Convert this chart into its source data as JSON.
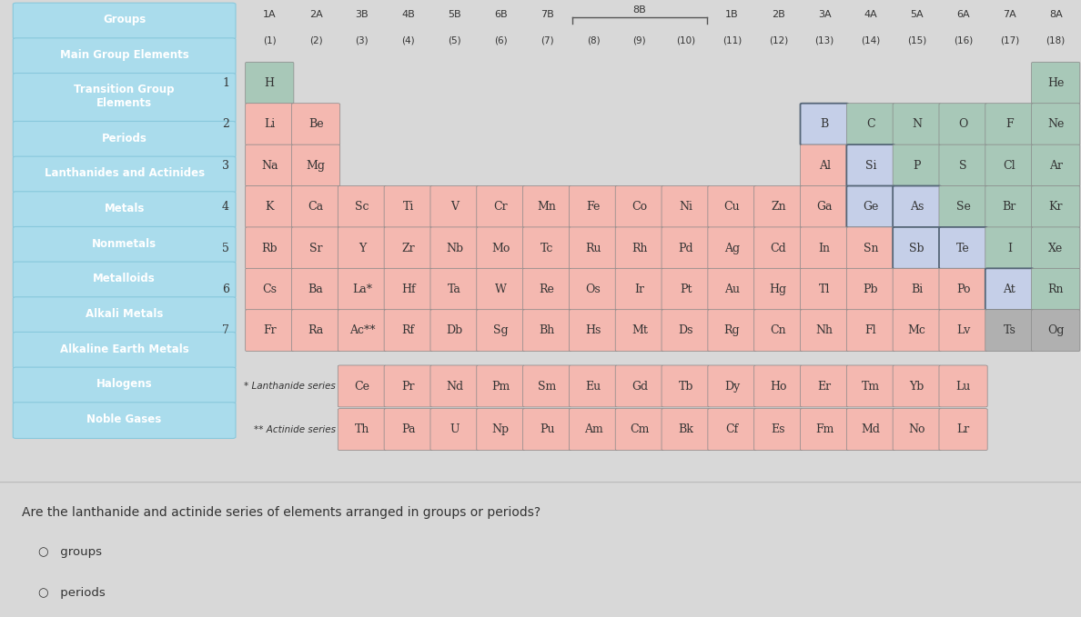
{
  "legend_labels": [
    "Groups",
    "Main Group Elements",
    "Transition Group\nElements",
    "Periods",
    "Lanthanides and Actinides",
    "Metals",
    "Nonmetals",
    "Metalloids",
    "Alkali Metals",
    "Alkaline Earth Metals",
    "Halogens",
    "Noble Gases"
  ],
  "legend_color": "#aadcec",
  "c_alkali": "#f4b8b0",
  "c_alkearth": "#f4b8b0",
  "c_trans": "#f4b8b0",
  "c_metal": "#f4b8b0",
  "c_metalloid": "#c5cfe8",
  "c_nonmetal": "#a8c8b8",
  "c_halogen": "#a8c8b8",
  "c_noble": "#a8c8b8",
  "c_h": "#a8c8b8",
  "c_lan": "#f4b8b0",
  "c_act": "#f4b8b0",
  "c_og": "#b0b0b0",
  "bg_color": "#d8d8d8",
  "table_bg": "#e8e8e8",
  "question_text": "Are the lanthanide and actinide series of elements arranged in groups or periods?",
  "answer1": "groups",
  "answer2": "periods"
}
